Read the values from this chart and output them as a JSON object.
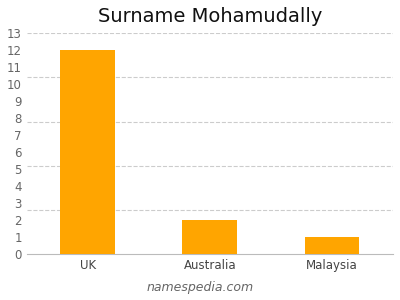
{
  "title": "Surname Mohamudally",
  "categories": [
    "UK",
    "Australia",
    "Malaysia"
  ],
  "values": [
    12,
    2,
    1
  ],
  "bar_color": "#FFA500",
  "ylim": [
    0,
    13
  ],
  "yticks": [
    0,
    1,
    2,
    3,
    4,
    5,
    6,
    7,
    8,
    9,
    10,
    11,
    12,
    13
  ],
  "grid_ticks": [
    2.6,
    5.2,
    7.8,
    10.4,
    13
  ],
  "grid_color": "#cccccc",
  "background_color": "#ffffff",
  "footer_text": "namespedia.com",
  "title_fontsize": 14,
  "tick_fontsize": 8.5,
  "footer_fontsize": 9,
  "bar_width": 0.45
}
